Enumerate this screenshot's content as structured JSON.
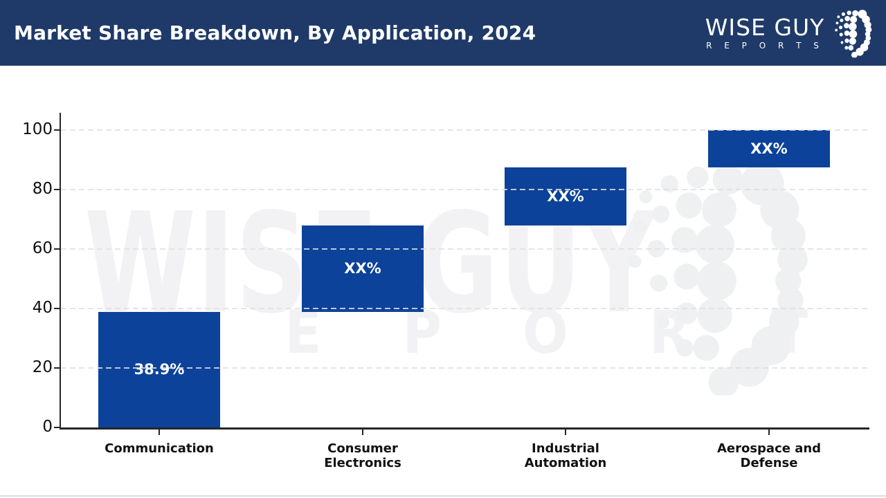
{
  "header": {
    "title": "Market Share Breakdown, By Application, 2024",
    "logo_line1": "WISE GUY",
    "logo_line2": "R E P O R T S",
    "bg_color": "#1f3a68"
  },
  "watermark": {
    "line1": "WISE GUY",
    "line2": "R E P O R T S"
  },
  "colors": {
    "header_bg": "#1f3a68",
    "bar_blue": "#0c4299",
    "axis": "#262626",
    "gridline": "#e0e0e0",
    "watermark_gray": "#f2f2f4"
  },
  "chart_data": {
    "type": "bar",
    "subtype": "waterfall",
    "title": "Market Share Breakdown, By Application, 2024",
    "categories": [
      "Communication",
      "Consumer Electronics",
      "Industrial Automation",
      "Aerospace and Defense"
    ],
    "category_label_lines": [
      [
        "Communication"
      ],
      [
        "Consumer",
        "Electronics"
      ],
      [
        "Industrial",
        "Automation"
      ],
      [
        "Aerospace and",
        "Defense"
      ]
    ],
    "bars": [
      {
        "category": "Communication",
        "label": "38.9%",
        "start": 0,
        "end": 38.9
      },
      {
        "category": "Consumer Electronics",
        "label": "XX%",
        "start": 38.9,
        "end": 68.0
      },
      {
        "category": "Industrial Automation",
        "label": "XX%",
        "start": 68.0,
        "end": 87.5
      },
      {
        "category": "Aerospace and Defense",
        "label": "XX%",
        "start": 87.5,
        "end": 100.0
      }
    ],
    "yticks": [
      0,
      20,
      40,
      60,
      80,
      100
    ],
    "ylim": [
      0,
      105.8
    ],
    "xlabel": "",
    "ylabel": "",
    "bar_color": "#0c4299",
    "grid": {
      "horizontal": true,
      "style": "dashed",
      "drawn_above_bars": true
    },
    "legend": "none"
  }
}
